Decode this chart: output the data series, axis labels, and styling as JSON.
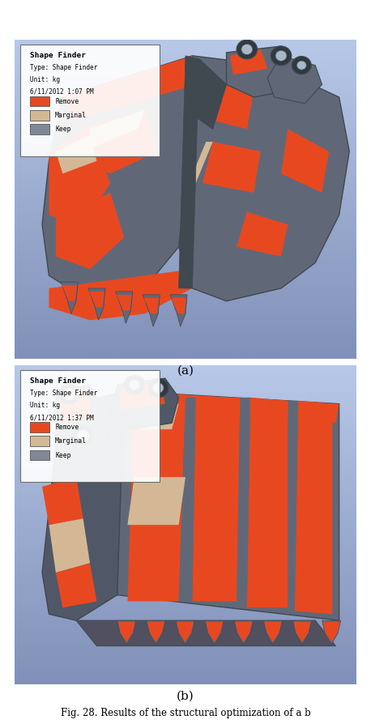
{
  "figure_width": 4.58,
  "figure_height": 8.94,
  "dpi": 100,
  "bg_color": "#ffffff",
  "panel_a": {
    "label": "(a)",
    "bg_top": "#b8c8e8",
    "bg_bottom": "#8090b8",
    "border_color": "#444444",
    "title_text": "Shape Finder",
    "subtitle_lines": [
      "Type: Shape Finder",
      "Unit: kg",
      "6/11/2012 1:07 PM"
    ],
    "legend_items": [
      {
        "label": "Remove",
        "color": "#e84820"
      },
      {
        "label": "Marginal",
        "color": "#d4b896"
      },
      {
        "label": "Keep",
        "color": "#808898"
      }
    ]
  },
  "panel_b": {
    "label": "(b)",
    "bg_top": "#b8c8e8",
    "bg_bottom": "#8090b8",
    "border_color": "#444444",
    "title_text": "Shape Finder",
    "subtitle_lines": [
      "Type: Shape Finder",
      "Unit: kg",
      "6/11/2012 1:37 PM"
    ],
    "legend_items": [
      {
        "label": "Remove",
        "color": "#e84820"
      },
      {
        "label": "Marginal",
        "color": "#d4b896"
      },
      {
        "label": "Keep",
        "color": "#808898"
      }
    ]
  },
  "caption": "Fig. 28. Results of the structural optimization of a b",
  "label_fontsize": 11,
  "caption_fontsize": 8.5
}
